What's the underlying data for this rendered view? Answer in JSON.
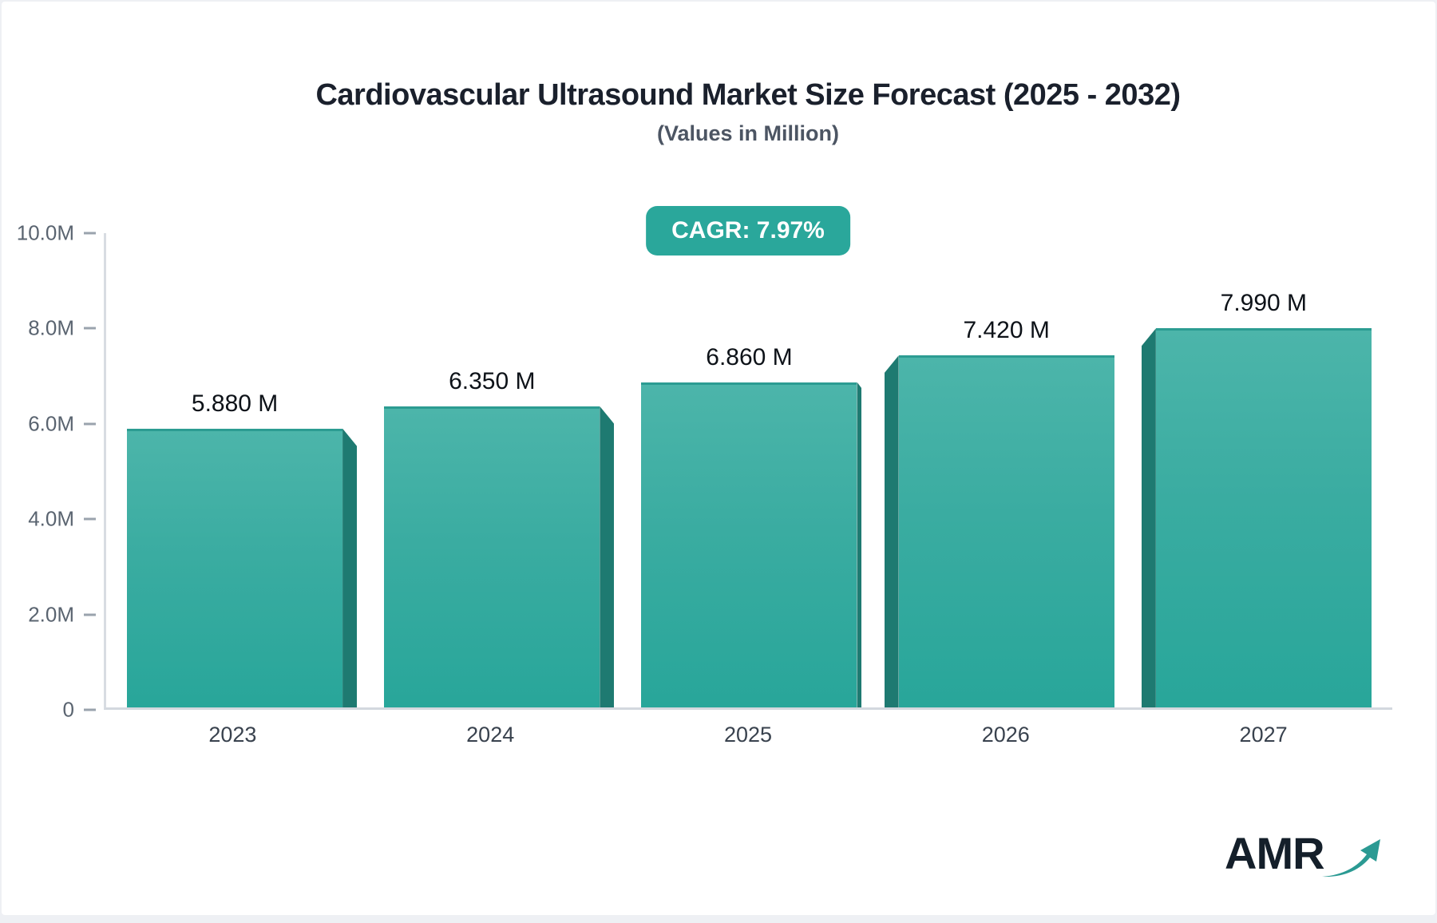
{
  "header": {
    "title": "Cardiovascular Ultrasound Market Size Forecast (2025 - 2032)",
    "subtitle": "(Values in Million)",
    "cagr_badge": "CAGR: 7.97%"
  },
  "chart_data": {
    "type": "bar",
    "title": "Cardiovascular Ultrasound Market Size Forecast (2025 - 2032)",
    "subtitle": "(Values in Million)",
    "cagr": "7.97%",
    "categories": [
      "2023",
      "2024",
      "2025",
      "2026",
      "2027"
    ],
    "values": [
      5.88,
      6.35,
      6.86,
      7.42,
      7.99
    ],
    "value_labels": [
      "5.880 M",
      "6.350 M",
      "6.860 M",
      "7.420 M",
      "7.990 M"
    ],
    "unit": "Million",
    "ylabel": "",
    "xlabel": "",
    "ylim": [
      0,
      10
    ],
    "yticks": [
      "10.0M",
      "8.0M",
      "6.0M",
      "4.0M",
      "2.0M",
      "0"
    ],
    "grid": false,
    "legend_position": "none",
    "bar_color_top": "#4cb5aa",
    "bar_color_bottom": "#28a69a",
    "bar_side_color": "#1e7a71",
    "accent_color": "#2aa79b"
  },
  "footer": {
    "logo_text": "AMR"
  }
}
